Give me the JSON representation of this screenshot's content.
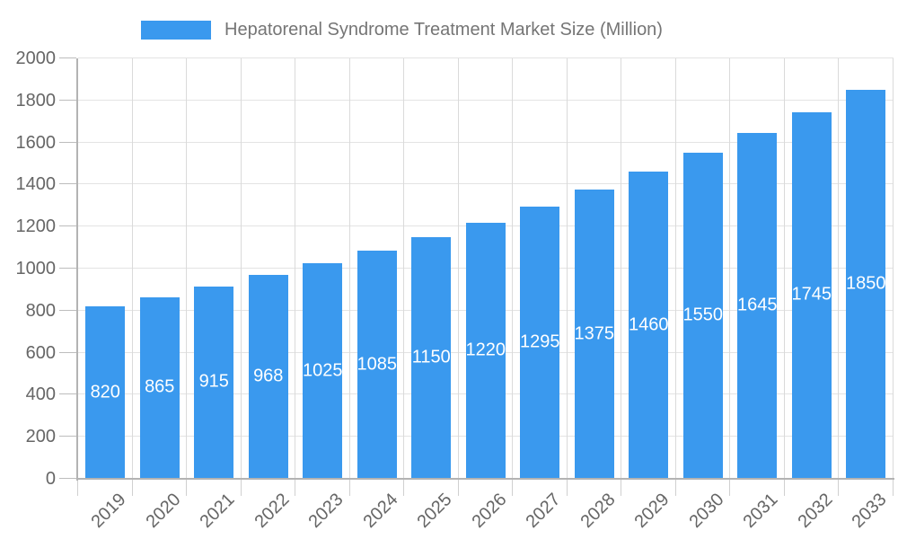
{
  "chart_data": {
    "type": "bar",
    "title": "Hepatorenal Syndrome Treatment Market Size (Million)",
    "legend": [
      "Hepatorenal Syndrome Treatment Market Size (Million)"
    ],
    "legend_position": "top",
    "categories": [
      "2019",
      "2020",
      "2021",
      "2022",
      "2023",
      "2024",
      "2025",
      "2026",
      "2027",
      "2028",
      "2029",
      "2030",
      "2031",
      "2032",
      "2033"
    ],
    "values": [
      820,
      865,
      915,
      968,
      1025,
      1085,
      1150,
      1220,
      1295,
      1375,
      1460,
      1550,
      1645,
      1745,
      1850
    ],
    "xlabel": "",
    "ylabel": "",
    "ylim": [
      0,
      2000
    ],
    "ytick_step": 200,
    "grid": true,
    "x_label_rotation": 45,
    "value_label_position": "inside-middle",
    "bar_color": "#3a99ee",
    "value_label_color": "#ffffff",
    "axis_text_color": "#666666",
    "title_color": "#757575"
  }
}
